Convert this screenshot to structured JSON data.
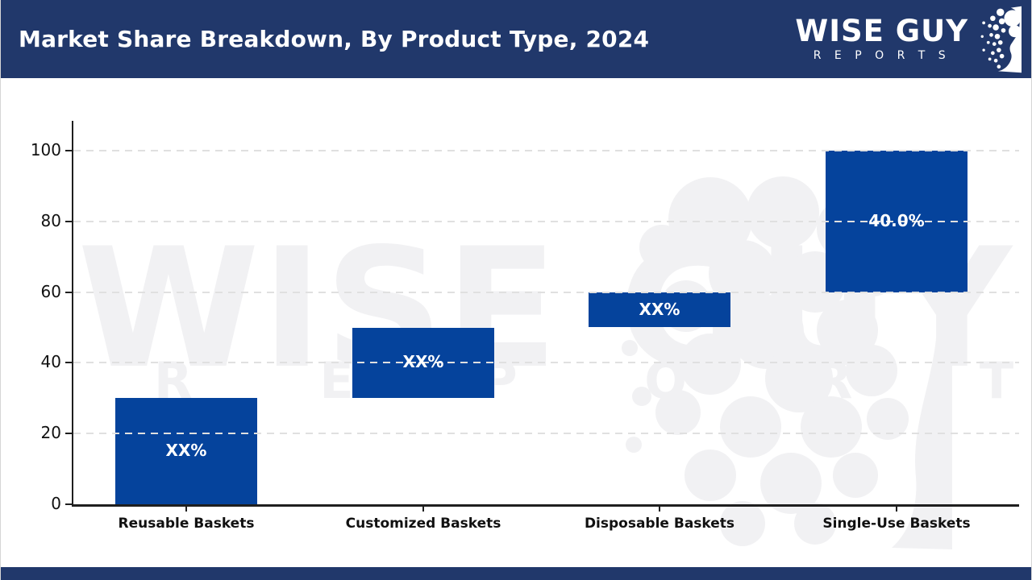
{
  "header": {
    "title": "Market Share Breakdown, By Product Type, 2024",
    "logo": {
      "primary": "WISE GUY",
      "secondary": "R E P O R T S"
    }
  },
  "watermark": {
    "primary": "WISE GUY",
    "secondary": "R E P O R T S"
  },
  "chart_data": {
    "type": "bar",
    "subtype": "floating_segment_waterfall",
    "title": "",
    "xlabel": "",
    "ylabel": "",
    "categories": [
      "Reusable Baskets",
      "Customized Baskets",
      "Disposable Baskets",
      "Single-Use Baskets"
    ],
    "segments": [
      {
        "category": "Reusable Baskets",
        "start": 0,
        "end": 30,
        "label": "XX%"
      },
      {
        "category": "Customized Baskets",
        "start": 30,
        "end": 50,
        "label": "XX%"
      },
      {
        "category": "Disposable Baskets",
        "start": 50,
        "end": 60,
        "label": "XX%"
      },
      {
        "category": "Single-Use Baskets",
        "start": 60,
        "end": 100,
        "label": "40.0%"
      }
    ],
    "ylim": [
      0,
      100
    ],
    "yticks": [
      0,
      20,
      40,
      60,
      80,
      100
    ],
    "grid": {
      "horizontal": true,
      "style": "dashed",
      "drawn_above_bars": true
    },
    "legend": null
  },
  "colors": {
    "header_bg": "#21386b",
    "footer_bg": "#21386b",
    "bar": "#05439c",
    "bar_label": "#ffffff",
    "grid_line": "#e0e0e0",
    "axis": "#1f1f1f",
    "tick_label": "#111111",
    "watermark": "#f1f1f3",
    "page_bg": "#ffffff"
  }
}
